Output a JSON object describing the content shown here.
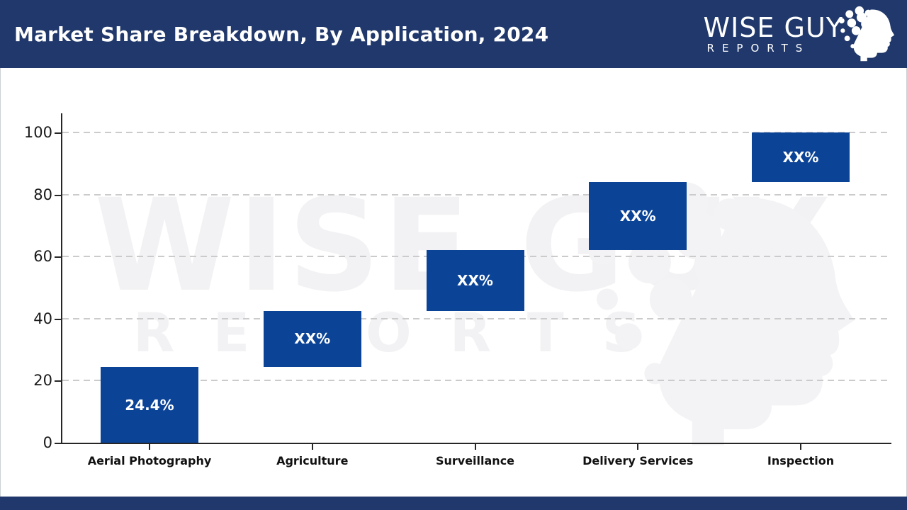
{
  "header": {
    "title": "Market Share Breakdown, By Application, 2024",
    "bg_color": "#20386B",
    "logo": {
      "line1": "WISE GUY",
      "line2": "REPORTS"
    }
  },
  "chart_data": {
    "type": "bar",
    "subtype": "floating-waterfall",
    "title": "Market Share Breakdown, By Application, 2024",
    "categories": [
      "Aerial Photography",
      "Agriculture",
      "Surveillance",
      "Delivery Services",
      "Inspection"
    ],
    "segments": [
      {
        "category": "Aerial Photography",
        "start": 0,
        "end": 24.4,
        "label": "24.4%"
      },
      {
        "category": "Agriculture",
        "start": 24.4,
        "end": 42.5,
        "label": "XX%"
      },
      {
        "category": "Surveillance",
        "start": 42.5,
        "end": 62,
        "label": "XX%"
      },
      {
        "category": "Delivery Services",
        "start": 62,
        "end": 84,
        "label": "XX%"
      },
      {
        "category": "Inspection",
        "start": 84,
        "end": 100,
        "label": "XX%"
      }
    ],
    "ylim": [
      0,
      100
    ],
    "y_ticks": [
      0,
      20,
      40,
      60,
      80,
      100
    ],
    "xlabel": "",
    "ylabel": "",
    "bar_color": "#0B4397",
    "grid": "horizontal-dashed",
    "legend": "none"
  },
  "watermark": {
    "line1": "WISE GUY",
    "line2": "REPORTS"
  },
  "footer": {
    "bg_color": "#20386B"
  }
}
